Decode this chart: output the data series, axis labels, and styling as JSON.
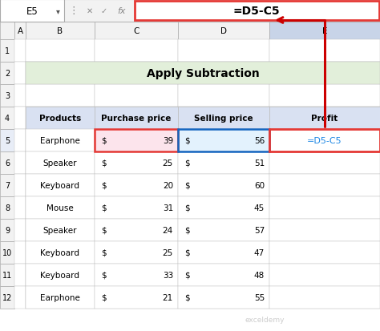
{
  "title": "Apply Subtraction",
  "formula_bar_cell": "E5",
  "formula_bar_formula": "=D5-C5",
  "col_headers": [
    "A",
    "B",
    "C",
    "D",
    "E"
  ],
  "row_labels": [
    "1",
    "2",
    "3",
    "4",
    "5",
    "6",
    "7",
    "8",
    "9",
    "10",
    "11",
    "12"
  ],
  "table_headers": [
    "Products",
    "Purchase price",
    "Selling price",
    "Profit"
  ],
  "products": [
    "Earphone",
    "Speaker",
    "Keyboard",
    "Mouse",
    "Speaker",
    "Keyboard",
    "Keyboard",
    "Earphone"
  ],
  "purchase_prices": [
    39,
    25,
    20,
    31,
    24,
    25,
    33,
    21
  ],
  "selling_prices": [
    56,
    51,
    60,
    45,
    57,
    47,
    48,
    55
  ],
  "profit_row0": "=D5-C5",
  "bg_color": "#FFFFFF",
  "header_bg": "#D9E1F2",
  "title_bg": "#E2EFDA",
  "toolbar_bg": "#F2F2F2",
  "col_hdr_bg": "#F2F2F2",
  "col_e_hdr_bg": "#C8D4E8",
  "purchase_highlight_bg": "#FCE4EC",
  "selling_highlight_bg": "#E3F2FD",
  "red_border": "#E53935",
  "blue_border": "#1565C0",
  "arrow_color": "#CC0000",
  "formula_text_color": "#1E88E5",
  "grid_color": "#BDBDBD",
  "toolbar_border": "#AAAAAA",
  "watermark_color": "#CCCCCC"
}
